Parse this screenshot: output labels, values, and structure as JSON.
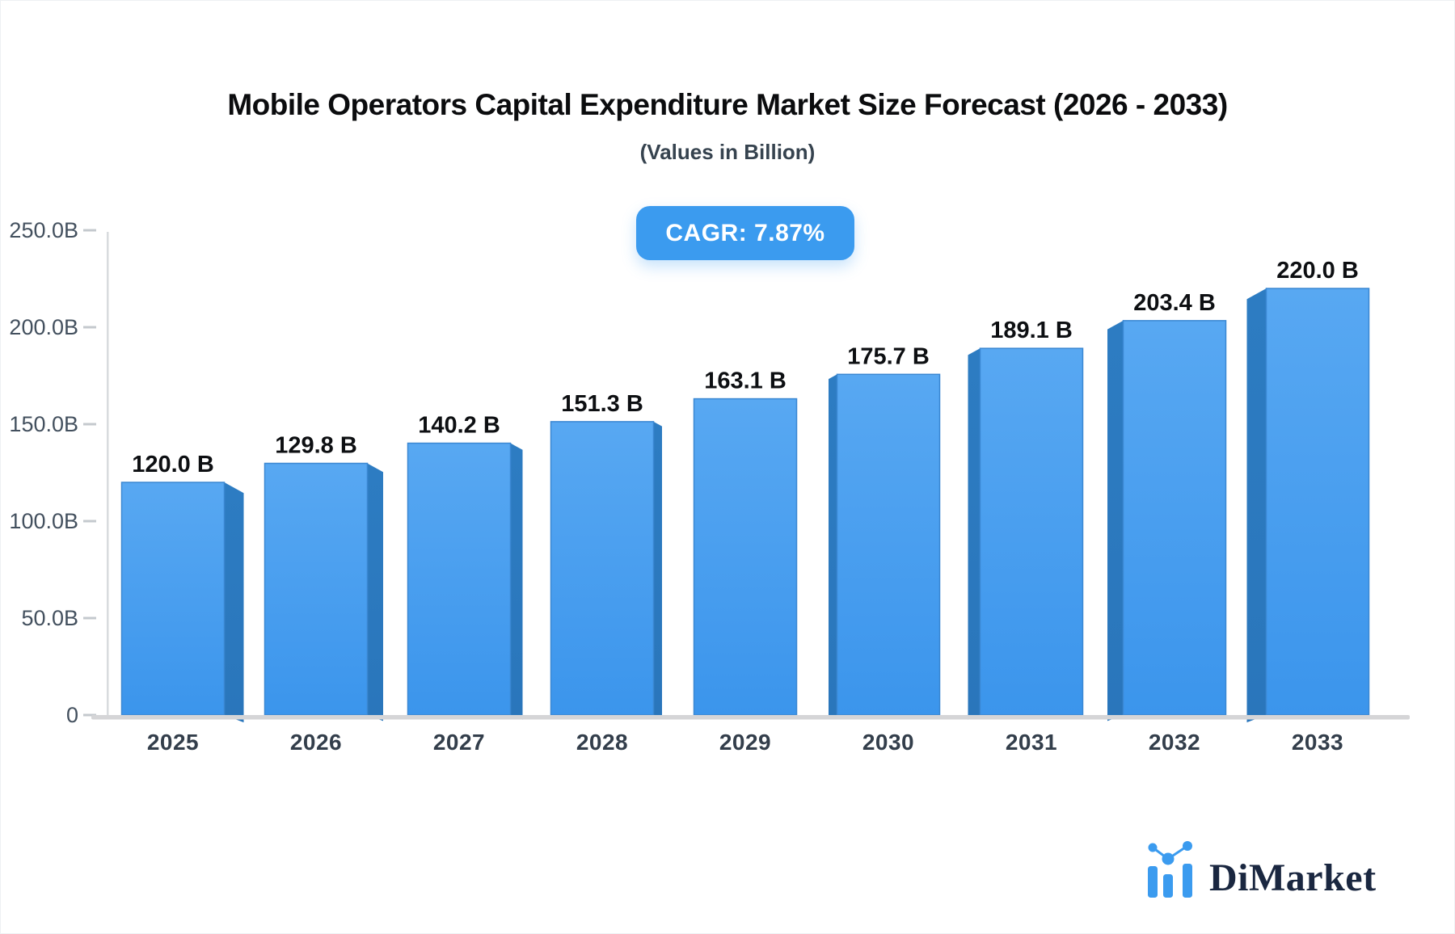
{
  "title": "Mobile Operators Capital Expenditure Market Size Forecast (2026 - 2033)",
  "subtitle": "(Values in Billion)",
  "cagr_badge": "CAGR: 7.87%",
  "brand": {
    "name": "DiMarket"
  },
  "colors": {
    "accent": "#3B9BEF",
    "bar_face_top": "#58A8F2",
    "bar_face_bottom": "#3B95EC",
    "bar_face_stroke": "#3A87D2",
    "bar_side": "#2D7CC2",
    "bar_side_dark": "#2A76BB",
    "axis_line": "#D8DBDE",
    "baseline": "#D5D5D7",
    "tick_mark": "#C4C9CE",
    "tick_label": "#43505E",
    "year_label": "#333E4B",
    "value_label": "#0D0F12",
    "title_color": "#0B0C0E",
    "subtitle_color": "#36434F",
    "logo_text": "#1A2740"
  },
  "chart_data": {
    "type": "bar",
    "style": "3d-perspective-columns",
    "title": "Mobile Operators Capital Expenditure Market Size Forecast (2026 - 2033)",
    "subtitle": "(Values in Billion)",
    "unit": "Billion",
    "cagr": "7.87%",
    "categories": [
      "2025",
      "2026",
      "2027",
      "2028",
      "2029",
      "2030",
      "2031",
      "2032",
      "2033"
    ],
    "values": [
      120.0,
      129.8,
      140.2,
      151.3,
      163.1,
      175.7,
      189.1,
      203.4,
      220.0
    ],
    "value_labels": [
      "120.0 B",
      "129.8 B",
      "140.2 B",
      "151.3 B",
      "163.1 B",
      "175.7 B",
      "189.1 B",
      "203.4 B",
      "220.0 B"
    ],
    "ylabel": "",
    "xlabel": "",
    "ylim": [
      0,
      250
    ],
    "ytick_values": [
      250,
      200,
      150,
      100,
      50,
      0
    ],
    "ytick_labels": [
      "250.0B",
      "200.0B",
      "150.0B",
      "100.0B",
      "50.0B",
      "0"
    ],
    "grid": false,
    "legend_position": "none"
  }
}
